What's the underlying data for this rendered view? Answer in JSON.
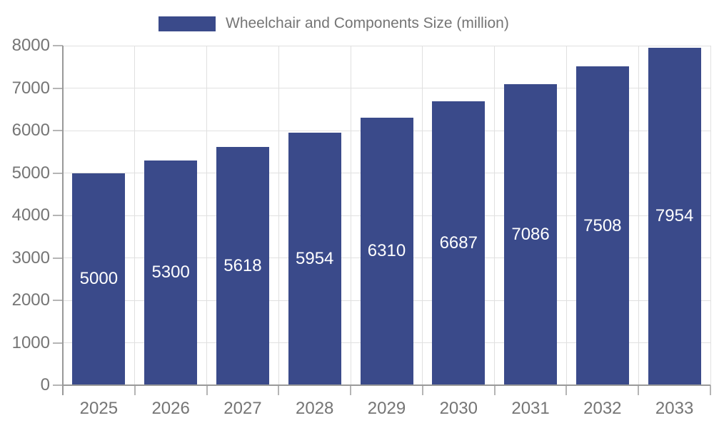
{
  "legend": {
    "label": "Wheelchair and Components Size (million)"
  },
  "chart_data": {
    "type": "bar",
    "title": "Wheelchair and Components Size (million)",
    "categories": [
      "2025",
      "2026",
      "2027",
      "2028",
      "2029",
      "2030",
      "2031",
      "2032",
      "2033"
    ],
    "values": [
      5000,
      5300,
      5618,
      5954,
      6310,
      6687,
      7086,
      7508,
      7954
    ],
    "series": [
      {
        "name": "Wheelchair and Components Size (million)",
        "values": [
          5000,
          5300,
          5618,
          5954,
          6310,
          6687,
          7086,
          7508,
          7954
        ]
      }
    ],
    "xlabel": "",
    "ylabel": "",
    "ylim": [
      0,
      8000
    ],
    "ytick_step": 1000,
    "yticks": [
      0,
      1000,
      2000,
      3000,
      4000,
      5000,
      6000,
      7000,
      8000
    ],
    "grid": true,
    "legend_position": "top-center",
    "value_labels": "inside-center",
    "colors": {
      "bar": "#3A4A8A",
      "grid": "#E0E0E0",
      "axis": "#999999",
      "tick": "#B5B5B5",
      "text": "#757575",
      "value_label": "#FFFFFF",
      "background": "#FFFFFF"
    }
  }
}
